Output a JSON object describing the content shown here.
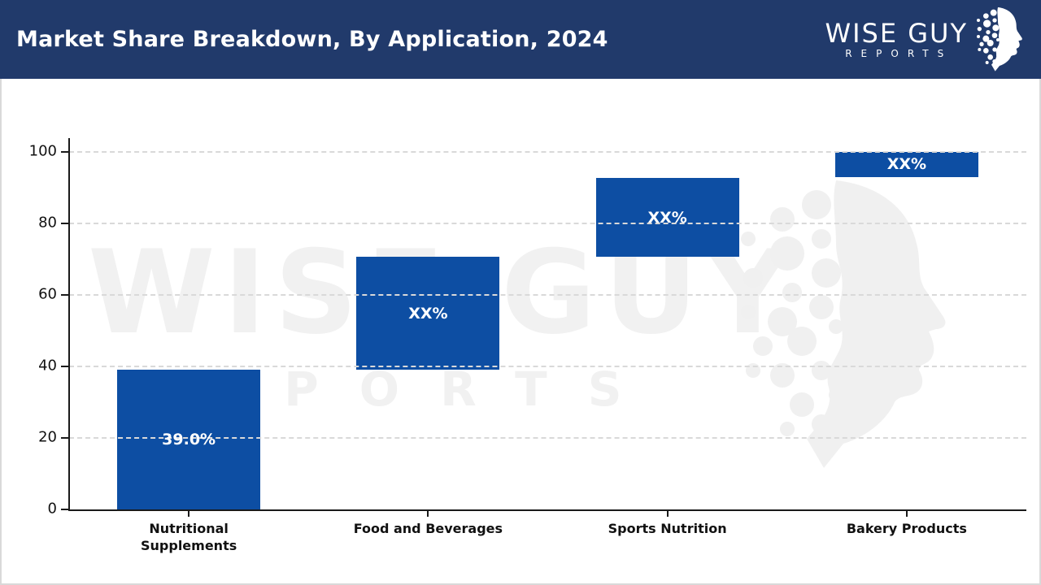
{
  "header": {
    "title": "Market Share Breakdown, By Application, 2024",
    "logo": {
      "line1": "WISE GUY",
      "line2": "REPORTS"
    }
  },
  "watermark": {
    "line1": "WISE GUY",
    "line2": "REPORTS"
  },
  "chart_data": {
    "type": "bar",
    "subtype": "waterfall",
    "title": "Market Share Breakdown, By Application, 2024",
    "categories": [
      "Nutritional Supplements",
      "Food and Beverages",
      "Sports Nutrition",
      "Bakery Products"
    ],
    "segments": [
      {
        "category": "Nutritional Supplements",
        "start": 0,
        "end": 39,
        "label": "39.0%"
      },
      {
        "category": "Food and Beverages",
        "start": 39,
        "end": 70.6,
        "label": "XX%"
      },
      {
        "category": "Sports Nutrition",
        "start": 70.7,
        "end": 92.7,
        "label": "XX%"
      },
      {
        "category": "Bakery Products",
        "start": 93,
        "end": 100,
        "label": "XX%"
      }
    ],
    "ylim": [
      0,
      100
    ],
    "yticks": [
      0,
      20,
      40,
      60,
      80,
      100
    ],
    "xlabel": "",
    "ylabel": "",
    "grid": "horizontal-dashed",
    "legend": "none",
    "colors": {
      "bar": "#0d4ea3",
      "bar_label": "#ffffff",
      "grid": "#d9d9d9",
      "axis": "#1a1a1a",
      "header": "#213a6b",
      "watermark": "#f1f1f1"
    }
  }
}
